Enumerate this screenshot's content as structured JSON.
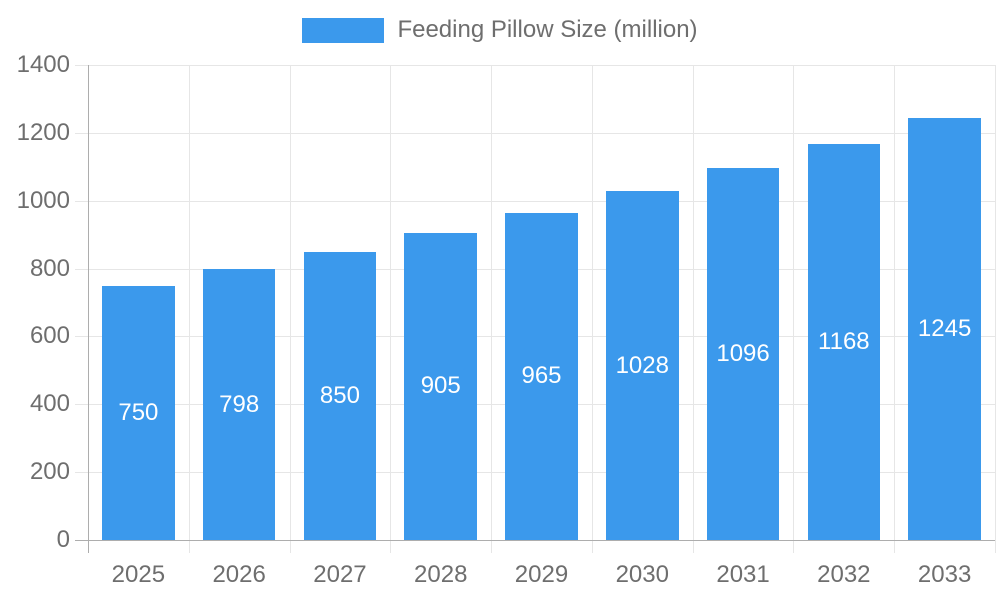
{
  "legend": {
    "label": "Feeding Pillow Size (million)"
  },
  "chart_data": {
    "type": "bar",
    "title": "",
    "xlabel": "",
    "ylabel": "",
    "series_name": "Feeding Pillow Size (million)",
    "categories": [
      "2025",
      "2026",
      "2027",
      "2028",
      "2029",
      "2030",
      "2031",
      "2032",
      "2033"
    ],
    "values": [
      750,
      798,
      850,
      905,
      965,
      1028,
      1096,
      1168,
      1245
    ],
    "value_labels": [
      "750",
      "798",
      "850",
      "905",
      "965",
      "1028",
      "1096",
      "1168",
      "1245"
    ],
    "ylim": [
      0,
      1400
    ],
    "yticks": [
      0,
      200,
      400,
      600,
      800,
      1000,
      1200,
      1400
    ],
    "grid": true,
    "legend_position": "top",
    "colors": {
      "bar": "#3b99ec",
      "value_label": "#ffffff",
      "axis_text": "#6e6e6e",
      "grid_line": "#e6e6e6",
      "axis_line": "#adadad",
      "background": "#ffffff"
    }
  }
}
